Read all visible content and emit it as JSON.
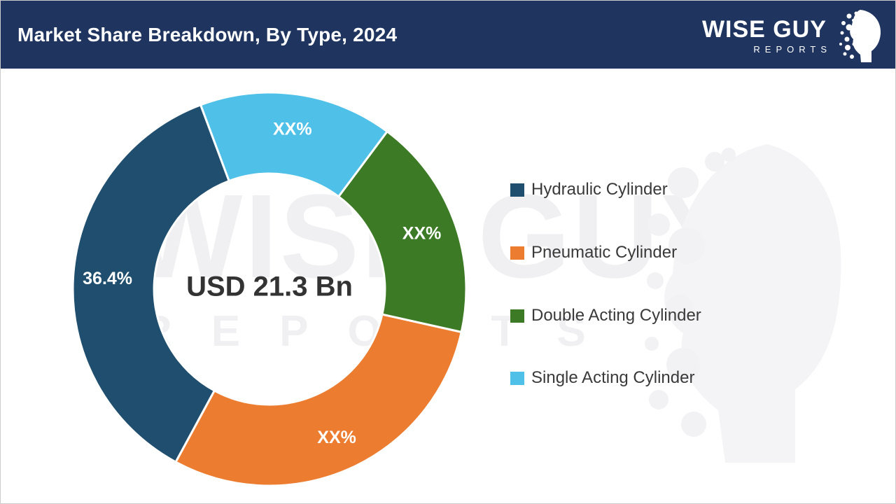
{
  "header": {
    "title": "Market Share Breakdown, By Type, 2024",
    "logo": {
      "wordmark": "WISE GUY",
      "subtext": "REPORTS"
    }
  },
  "watermark": {
    "wordmark": "WISE GUY",
    "subtext": "REPORTS"
  },
  "chart_data": {
    "type": "pie",
    "subtype": "donut",
    "title": "Market Share Breakdown, By Type, 2024",
    "center_label": "USD 21.3 Bn",
    "start_angle_compass_deg": 339.5,
    "direction": "counterclockwise",
    "inner_radius_ratio": 0.587,
    "legend_position": "right",
    "segments": [
      {
        "label": "Hydraulic Cylinder",
        "value_pct": 36.4,
        "display_label": "36.4%",
        "color": "#1f4e6e"
      },
      {
        "label": "Pneumatic Cylinder",
        "value_pct": 29.4,
        "display_label": "XX%",
        "color": "#ec7d30"
      },
      {
        "label": "Double Acting Cylinder",
        "value_pct": 18.3,
        "display_label": "XX%",
        "color": "#3d7a26"
      },
      {
        "label": "Single Acting Cylinder",
        "value_pct": 15.9,
        "display_label": "XX%",
        "color": "#4fc0e8"
      }
    ]
  },
  "colors": {
    "header_bg": "#1f3560",
    "legend_text": "#3a3a3a",
    "center_text": "#333333",
    "watermark": "#f0f0f3",
    "slice_gap_stroke": "#ffffff"
  }
}
